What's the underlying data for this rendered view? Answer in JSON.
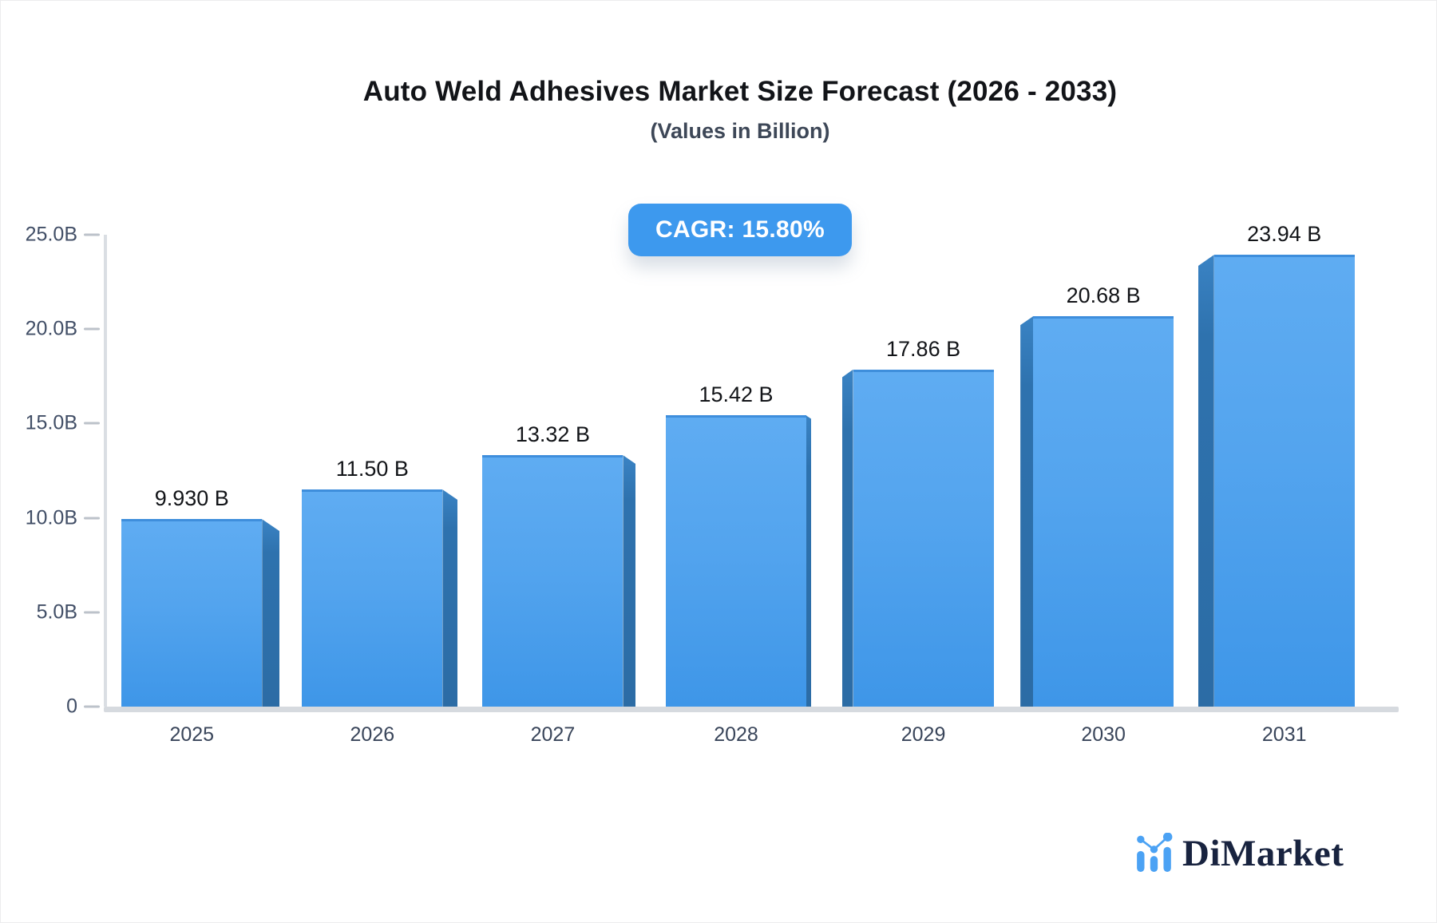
{
  "chart_data": {
    "type": "bar",
    "title": "Auto Weld Adhesives Market Size Forecast (2026 - 2033)",
    "subtitle": "(Values in Billion)",
    "cagr_label": "CAGR: 15.80%",
    "categories": [
      "2025",
      "2026",
      "2027",
      "2028",
      "2029",
      "2030",
      "2031"
    ],
    "values": [
      9.93,
      11.5,
      13.32,
      15.42,
      17.86,
      20.68,
      23.94
    ],
    "value_labels": [
      "9.930 B",
      "11.50 B",
      "13.32 B",
      "15.42 B",
      "17.86 B",
      "20.68 B",
      "23.94 B"
    ],
    "unit": "Billion",
    "ylim": [
      0,
      25
    ],
    "ytick_labels": [
      "25.0B",
      "20.0B",
      "15.0B",
      "10.0B",
      "5.0B",
      "0"
    ],
    "grid": false,
    "legend": false,
    "bar_color": "#459bea",
    "bar_side_color": "#2f74af",
    "badge_color": "#3d99ee"
  },
  "branding": {
    "name": "DiMarket",
    "logo_icon": "mini-bar-chart-icon",
    "text_color": "#18233f",
    "accent_color": "#4ba2f4"
  }
}
